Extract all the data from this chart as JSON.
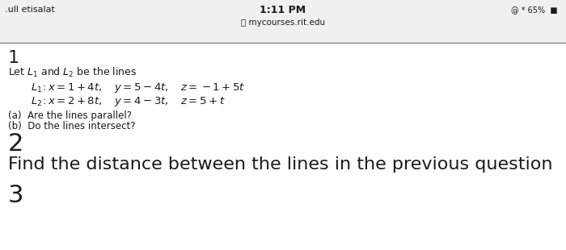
{
  "bg_color": "#ffffff",
  "status_bg": "#f0f0f0",
  "content_bg": "#ffffff",
  "statusbar_left": "etisalat",
  "statusbar_center_time": "1:11 PM",
  "statusbar_center_url": "mycourses.rit.edu",
  "statusbar_right": "@ * 65%",
  "q1_number": "1",
  "q1_intro_plain": "Let ",
  "q1_intro_math": "$L_1$",
  "q1_intro_plain2": " and ",
  "q1_intro_math2": "$L_2$",
  "q1_intro_plain3": " be the lines",
  "L1_math": "$L_1\\!: x = 1+4t, \\quad y = 5-4t, \\quad z = -1+5t$",
  "L2_math": "$L_2\\!: x = 2+8t, \\quad y = 4-3t, \\quad z = 5+t$",
  "part_a": "(a)  Are the lines parallel?",
  "part_b": "(b)  Do the lines intersect?",
  "q2_number": "2",
  "q2_text": "Find the distance between the lines in the previous question",
  "q3_number": "3",
  "font_color": "#1a1a1a",
  "separator_color": "#888888",
  "statusbar_fontsize": 8,
  "url_fontsize": 7.5,
  "q1_num_fontsize": 16,
  "intro_fontsize": 9,
  "line_fontsize": 9.5,
  "part_fontsize": 8.5,
  "q2_num_fontsize": 22,
  "q2_text_fontsize": 16,
  "q3_num_fontsize": 22
}
